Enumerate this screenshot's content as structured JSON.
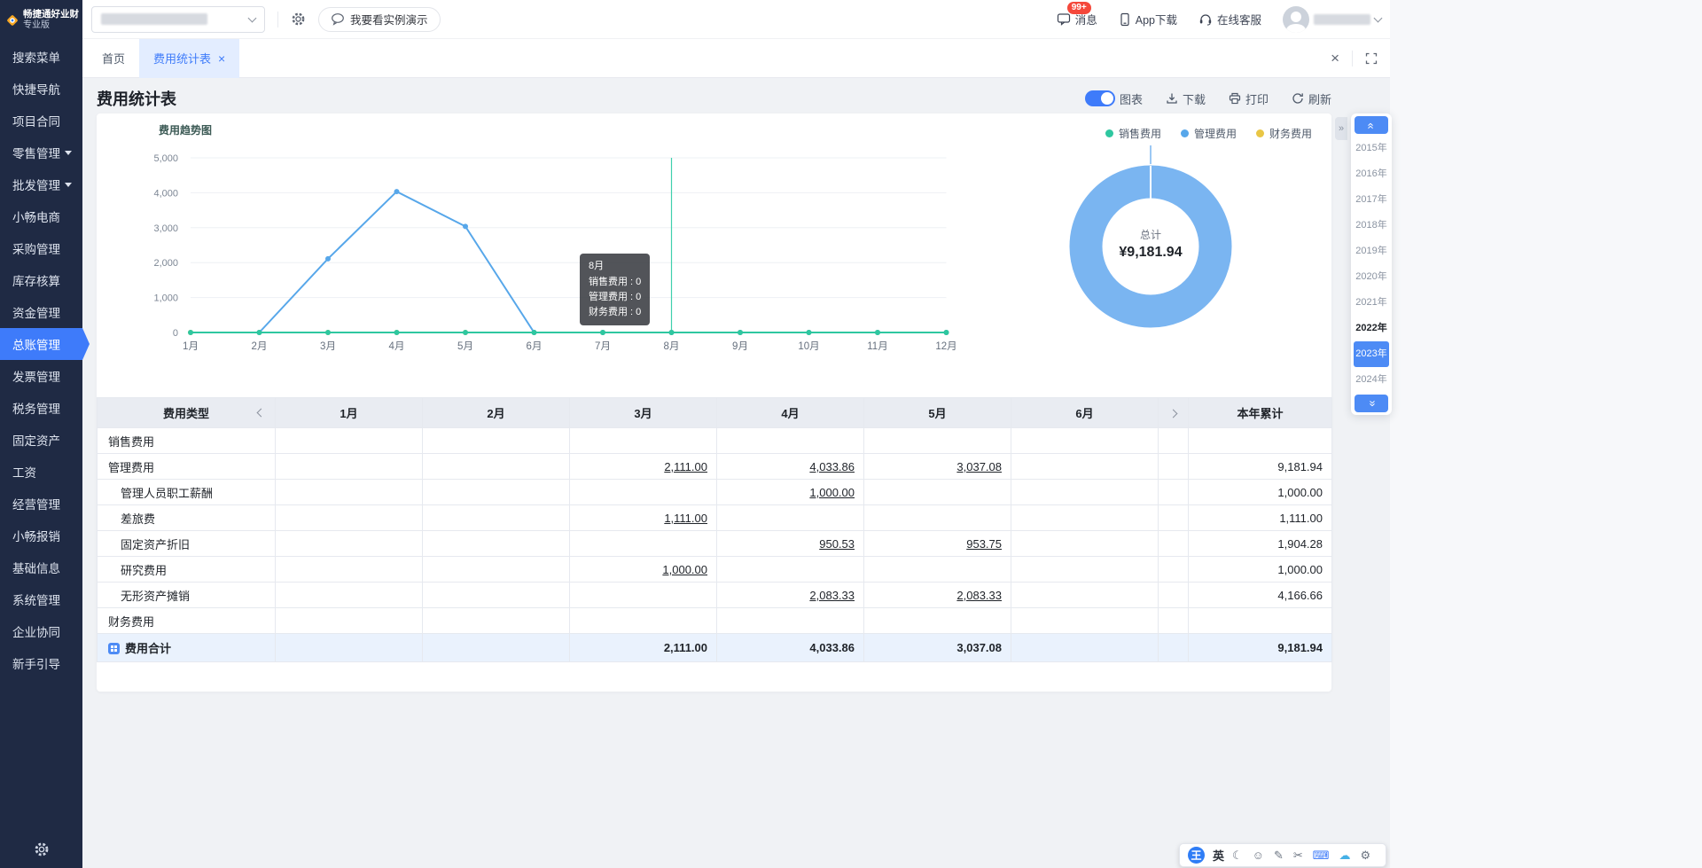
{
  "app": {
    "accent_color": "#3e7bfa"
  },
  "sidebar": {
    "logo_line1": "畅捷通好业财",
    "logo_line2": "专业版",
    "items": [
      {
        "label": "搜索菜单"
      },
      {
        "label": "快捷导航"
      },
      {
        "label": "项目合同"
      },
      {
        "label": "零售管理",
        "arrow": true
      },
      {
        "label": "批发管理",
        "arrow": true
      },
      {
        "label": "小畅电商"
      },
      {
        "label": "采购管理"
      },
      {
        "label": "库存核算"
      },
      {
        "label": "资金管理"
      },
      {
        "label": "总账管理",
        "active": true
      },
      {
        "label": "发票管理"
      },
      {
        "label": "税务管理"
      },
      {
        "label": "固定资产"
      },
      {
        "label": "工资"
      },
      {
        "label": "经营管理"
      },
      {
        "label": "小畅报销"
      },
      {
        "label": "基础信息"
      },
      {
        "label": "系统管理"
      },
      {
        "label": "企业协同"
      },
      {
        "label": "新手引导"
      }
    ]
  },
  "topbar": {
    "demo_label": "我要看实例演示",
    "message_label": "消息",
    "message_badge": "99+",
    "app_download_label": "App下载",
    "service_label": "在线客服"
  },
  "tabbar": {
    "tabs": [
      {
        "label": "首页",
        "active": false,
        "closable": false
      },
      {
        "label": "费用统计表",
        "active": true,
        "closable": true
      }
    ]
  },
  "page": {
    "title": "费用统计表",
    "toolbar": {
      "chart_toggle_label": "图表",
      "download_label": "下载",
      "print_label": "打印",
      "refresh_label": "刷新"
    }
  },
  "chart_data": [
    {
      "type": "line",
      "title": "费用趋势图",
      "x": [
        "1月",
        "2月",
        "3月",
        "4月",
        "5月",
        "6月",
        "7月",
        "8月",
        "9月",
        "10月",
        "11月",
        "12月"
      ],
      "yticks": [
        0,
        1000,
        2000,
        3000,
        4000,
        5000
      ],
      "ylim": [
        0,
        5000
      ],
      "grid": true,
      "legend_position": "top-right",
      "series": [
        {
          "name": "销售费用",
          "color": "#2ec7a0",
          "values": [
            0,
            0,
            0,
            0,
            0,
            0,
            0,
            0,
            0,
            0,
            0,
            0
          ]
        },
        {
          "name": "管理费用",
          "color": "#57a7ea",
          "values": [
            null,
            0,
            2111.0,
            4033.86,
            3037.08,
            0,
            0,
            0,
            0,
            0,
            0,
            0
          ]
        },
        {
          "name": "财务费用",
          "color": "#e9c645",
          "values": [
            0,
            0,
            0,
            0,
            0,
            0,
            0,
            0,
            0,
            0,
            0,
            0
          ]
        }
      ],
      "tooltip": {
        "title": "8月",
        "x_index": 7,
        "rows": [
          {
            "label": "销售费用",
            "value": "0"
          },
          {
            "label": "管理费用",
            "value": "0"
          },
          {
            "label": "财务费用",
            "value": "0"
          }
        ]
      }
    },
    {
      "type": "pie",
      "donut": true,
      "center_label": "总计",
      "center_value": "¥9,181.94",
      "slices": [
        {
          "name": "管理费用",
          "value": 9181.94,
          "percent": 100,
          "color": "#7ab5f1"
        }
      ]
    }
  ],
  "year_panel": {
    "items": [
      {
        "label": "2015年"
      },
      {
        "label": "2016年"
      },
      {
        "label": "2017年"
      },
      {
        "label": "2018年"
      },
      {
        "label": "2019年"
      },
      {
        "label": "2020年"
      },
      {
        "label": "2021年"
      },
      {
        "label": "2022年",
        "strong": true
      },
      {
        "label": "2023年",
        "selected": true
      },
      {
        "label": "2024年"
      }
    ]
  },
  "table": {
    "columns": [
      "费用类型",
      "1月",
      "2月",
      "3月",
      "4月",
      "5月",
      "6月",
      "本年累计"
    ],
    "rows": [
      {
        "label": "销售费用",
        "indent": 0,
        "values": [
          "",
          "",
          "",
          "",
          "",
          "",
          ""
        ]
      },
      {
        "label": "管理费用",
        "indent": 0,
        "values": [
          "",
          "",
          "2,111.00",
          "4,033.86",
          "3,037.08",
          "",
          "9,181.94"
        ]
      },
      {
        "label": "管理人员职工薪酬",
        "indent": 1,
        "values": [
          "",
          "",
          "",
          "1,000.00",
          "",
          "",
          "1,000.00"
        ]
      },
      {
        "label": "差旅费",
        "indent": 1,
        "values": [
          "",
          "",
          "1,111.00",
          "",
          "",
          "",
          "1,111.00"
        ]
      },
      {
        "label": "固定资产折旧",
        "indent": 1,
        "values": [
          "",
          "",
          "",
          "950.53",
          "953.75",
          "",
          "1,904.28"
        ]
      },
      {
        "label": "研究费用",
        "indent": 1,
        "values": [
          "",
          "",
          "1,000.00",
          "",
          "",
          "",
          "1,000.00"
        ]
      },
      {
        "label": "无形资产摊销",
        "indent": 1,
        "values": [
          "",
          "",
          "",
          "2,083.33",
          "2,083.33",
          "",
          "4,166.66"
        ]
      },
      {
        "label": "财务费用",
        "indent": 0,
        "values": [
          "",
          "",
          "",
          "",
          "",
          "",
          ""
        ]
      }
    ],
    "total_row": {
      "label": "费用合计",
      "values": [
        "",
        "",
        "2,111.00",
        "4,033.86",
        "3,037.08",
        "",
        "9,181.94"
      ]
    }
  },
  "ime": {
    "logo_text": "王",
    "lang_label": "英",
    "icons": [
      {
        "name": "moon-icon",
        "glyph": "☾"
      },
      {
        "name": "emoji-icon",
        "glyph": "☺"
      },
      {
        "name": "pen-icon",
        "glyph": "✎"
      },
      {
        "name": "scissors-icon",
        "glyph": "✂"
      },
      {
        "name": "keyboard-icon",
        "glyph": "⌨"
      },
      {
        "name": "cloud-icon",
        "glyph": "☁"
      },
      {
        "name": "gear-icon",
        "glyph": "⚙"
      }
    ]
  }
}
